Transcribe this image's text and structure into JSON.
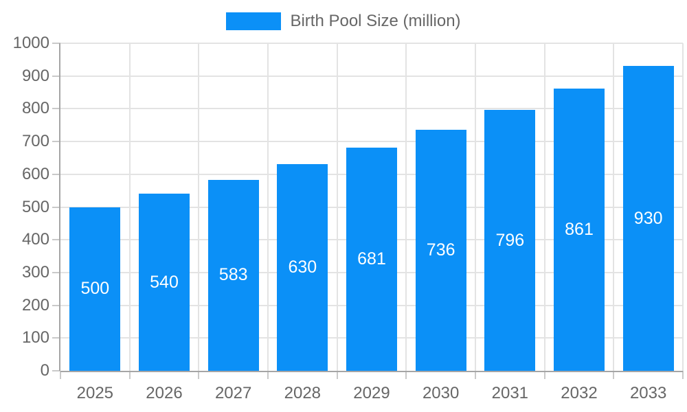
{
  "chart_data": {
    "type": "bar",
    "title": "",
    "legend": "Birth Pool Size (million)",
    "legend_position": "top",
    "categories": [
      "2025",
      "2026",
      "2027",
      "2028",
      "2029",
      "2030",
      "2031",
      "2032",
      "2033"
    ],
    "values": [
      500,
      540,
      583,
      630,
      681,
      736,
      796,
      861,
      930
    ],
    "xlabel": "",
    "ylabel": "",
    "ylim": [
      0,
      1000
    ],
    "y_ticks": [
      0,
      100,
      200,
      300,
      400,
      500,
      600,
      700,
      800,
      900,
      1000
    ],
    "grid": true,
    "value_label_position": "inside-center",
    "colors": {
      "bar": "#0b90f7",
      "grid": "#e3e3e3",
      "tick": "#c9c9c9",
      "axis": "#a5a5a5",
      "axis_label": "#666666",
      "value_label": "#ffffff",
      "legend_text": "#666666"
    }
  }
}
